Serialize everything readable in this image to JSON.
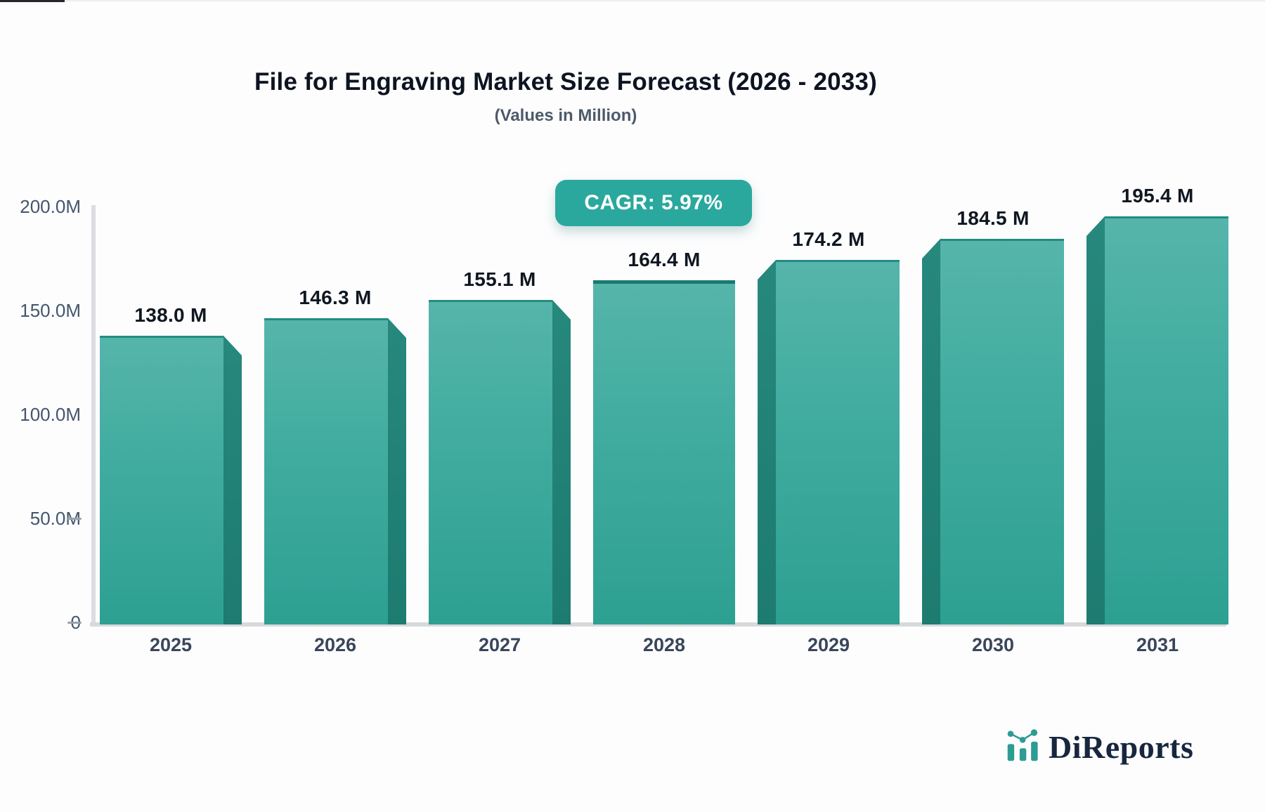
{
  "page": {
    "title": "File for Engraving Market Size Forecast (2026 - 2033)",
    "subtitle": "(Values in Million)",
    "cagr_badge": "CAGR: 5.97%"
  },
  "logo": {
    "text": "DiReports",
    "icon": "mini-bar-line-chart-icon",
    "icon_color": "#2e9c93",
    "text_color": "#16273e"
  },
  "chart_data": {
    "type": "bar",
    "title": "File for Engraving Market Size Forecast (2026 - 2033)",
    "subtitle": "(Values in Million)",
    "cagr": "5.97%",
    "categories": [
      "2025",
      "2026",
      "2027",
      "2028",
      "2029",
      "2030",
      "2031"
    ],
    "values": [
      138.0,
      146.3,
      155.1,
      164.4,
      174.2,
      184.5,
      195.4
    ],
    "bar_labels": [
      "138.0 M",
      "146.3 M",
      "155.1 M",
      "164.4 M",
      "174.2 M",
      "184.5 M",
      "195.4 M"
    ],
    "ylabel": "",
    "xlabel": "",
    "ylim": [
      0,
      200
    ],
    "grid": "off",
    "legend": "none",
    "y_ticks": [
      {
        "label": "200.0M",
        "value": 200,
        "dash": false
      },
      {
        "label": "150.0M",
        "value": 150,
        "dash": false
      },
      {
        "label": "100.0M",
        "value": 100,
        "dash": false
      },
      {
        "label": "50.0M",
        "value": 50,
        "dash": true
      },
      {
        "label": "0",
        "value": 0,
        "dash": true
      }
    ],
    "colors": {
      "bar_face_top": "#56b5aa",
      "bar_face_bottom": "#2da092",
      "bar_side": "#1f8076",
      "badge_bg": "#2ba89d",
      "axis_line": "#d9dadf",
      "tick_text": "#44566b",
      "category_text": "#39465a",
      "value_text": "#0f1720"
    }
  }
}
